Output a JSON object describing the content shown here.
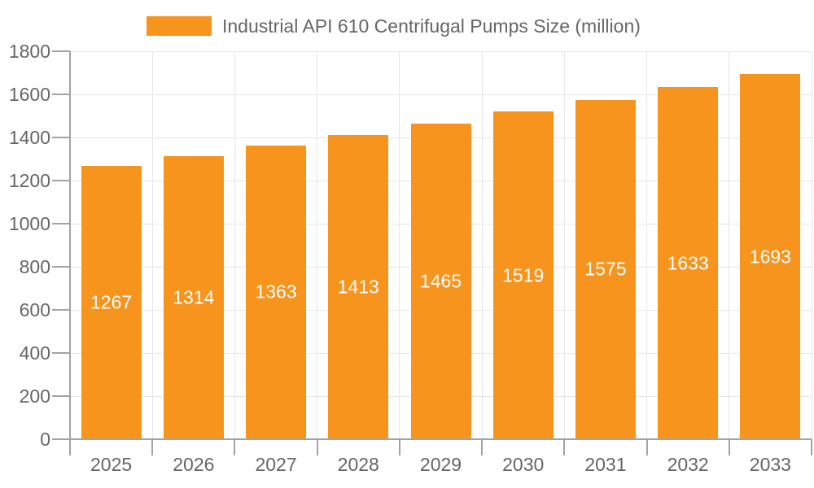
{
  "legend": {
    "label": "Industrial API 610 Centrifugal Pumps Size (million)"
  },
  "chart_data": {
    "type": "bar",
    "title": "Industrial API 610 Centrifugal Pumps Size (million)",
    "categories": [
      "2025",
      "2026",
      "2027",
      "2028",
      "2029",
      "2030",
      "2031",
      "2032",
      "2033"
    ],
    "values": [
      1267,
      1314,
      1363,
      1413,
      1465,
      1519,
      1575,
      1633,
      1693
    ],
    "series": [
      {
        "name": "Industrial API 610 Centrifugal Pumps Size (million)",
        "values": [
          1267,
          1314,
          1363,
          1413,
          1465,
          1519,
          1575,
          1633,
          1693
        ]
      }
    ],
    "xlabel": "",
    "ylabel": "",
    "ylim": [
      0,
      1800
    ],
    "yticks": [
      0,
      200,
      400,
      600,
      800,
      1000,
      1200,
      1400,
      1600,
      1800
    ],
    "grid": "both",
    "legend_position": "top",
    "value_labels": "inside-center"
  },
  "colors": {
    "bar": "#F7941E",
    "value_label": "#FFFFFF",
    "grid": "#E6E6E6",
    "axis": "#A3A3A3",
    "text": "#666666",
    "background": "#FFFFFF"
  }
}
